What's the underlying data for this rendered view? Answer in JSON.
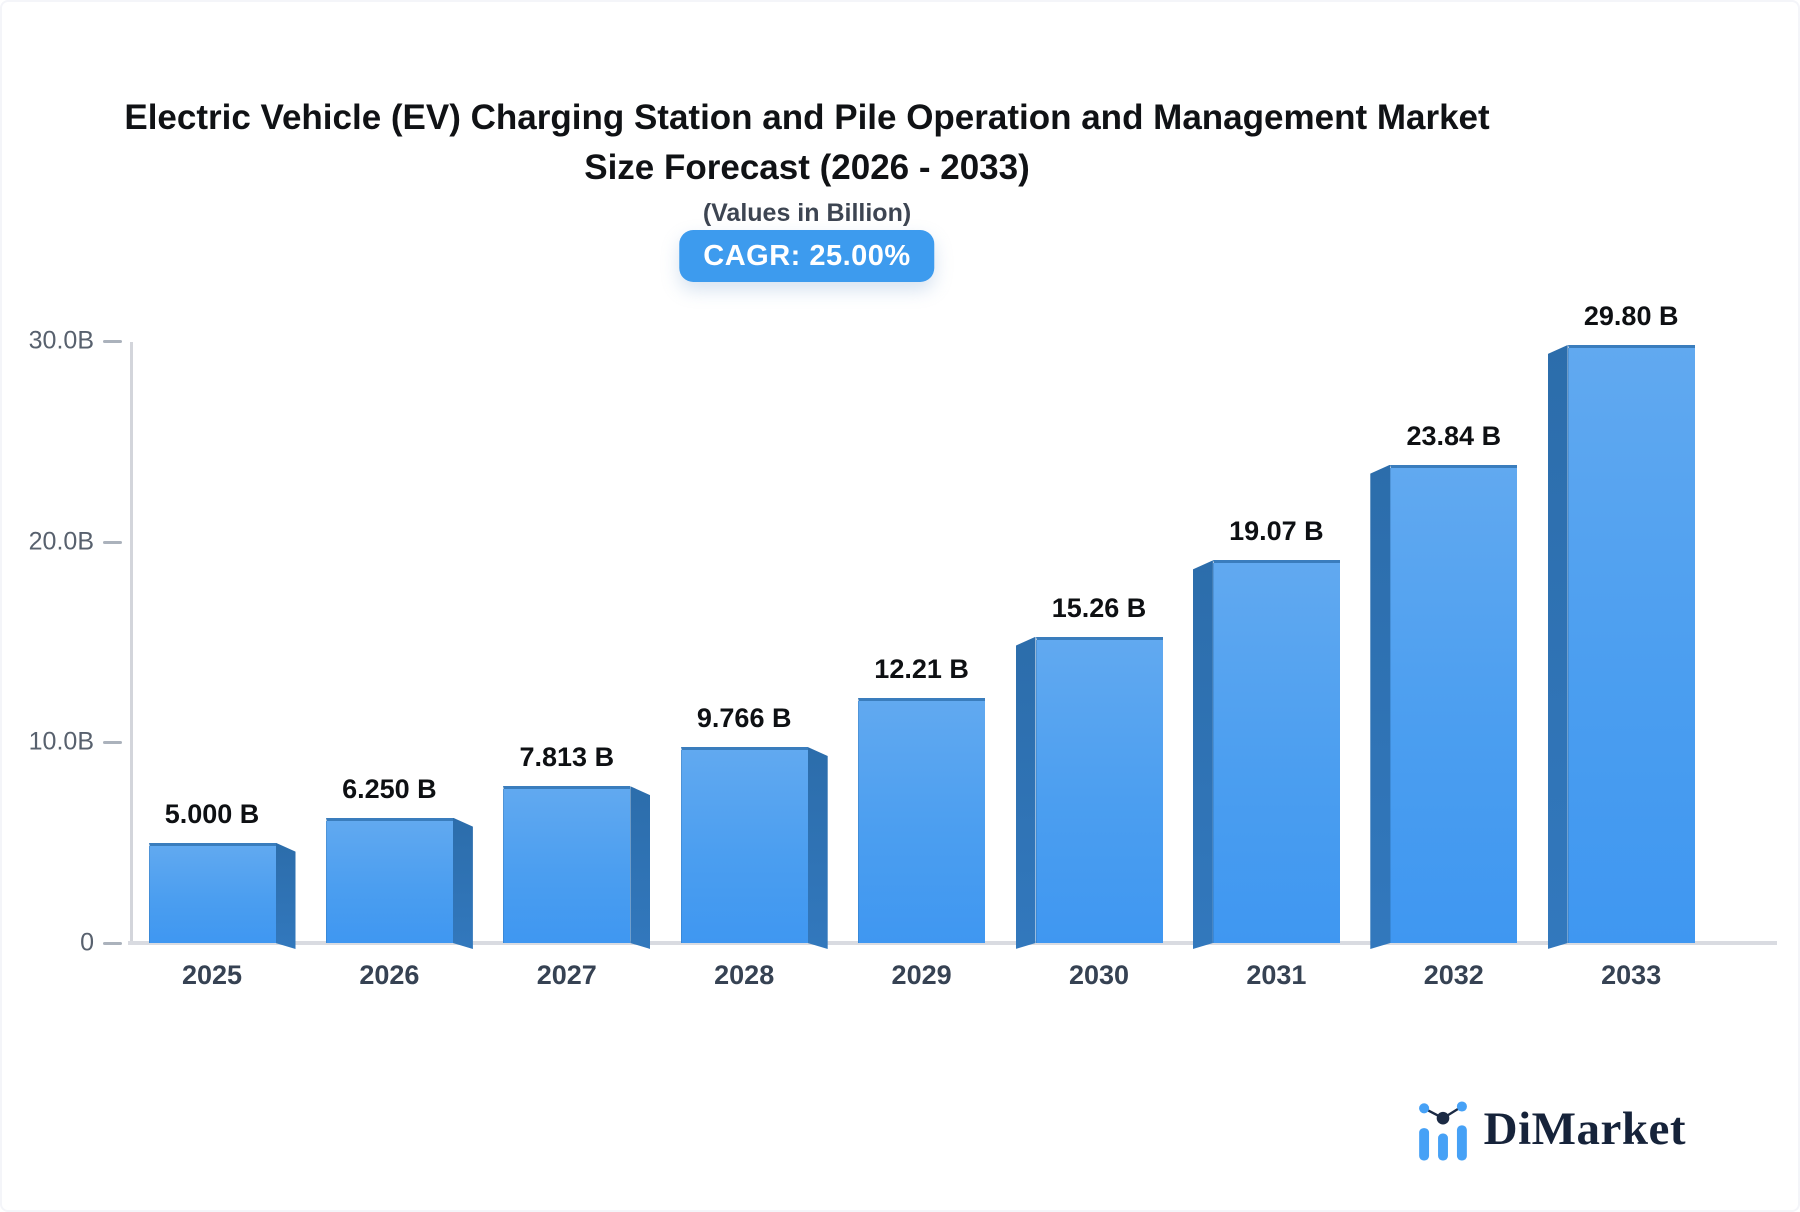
{
  "header": {
    "title_line1": "Electric Vehicle (EV) Charging Station and Pile Operation and Management Market",
    "title_line2": "Size Forecast (2026 - 2033)",
    "subtitle": "(Values in Billion)",
    "cagr_label": "CAGR: 25.00%"
  },
  "chart_data": {
    "type": "bar",
    "title": "Electric Vehicle (EV) Charging Station and Pile Operation and Management Market Size Forecast (2026 - 2033)",
    "subtitle": "(Values in Billion)",
    "cagr_percent": 25.0,
    "categories": [
      "2025",
      "2026",
      "2027",
      "2028",
      "2029",
      "2030",
      "2031",
      "2032",
      "2033"
    ],
    "values": [
      5.0,
      6.25,
      7.813,
      9.766,
      12.21,
      15.26,
      19.07,
      23.84,
      29.8
    ],
    "value_labels": [
      "5.000 B",
      "6.250 B",
      "7.813 B",
      "9.766 B",
      "12.21 B",
      "15.26 B",
      "19.07 B",
      "23.84 B",
      "29.80 B"
    ],
    "xlabel": "",
    "ylabel": "",
    "ylim": [
      0,
      30
    ],
    "yticks": [
      {
        "label": "30.0B",
        "value": 30
      },
      {
        "label": "20.0B",
        "value": 20
      },
      {
        "label": "10.0B",
        "value": 10
      },
      {
        "label": "0",
        "value": 0
      }
    ],
    "grid": false,
    "legend": "none",
    "colors": {
      "bar_face_top": "#61a9f0",
      "bar_face_bottom": "#3f97f1",
      "bar_side": "#2d6fae",
      "badge_background": "#3d9bee",
      "badge_text": "#ffffff",
      "axis_line": "#d3d5db",
      "tick_text": "#58616e",
      "year_text": "#364253",
      "value_text": "#0e1013"
    }
  },
  "footer": {
    "brand": "DiMarket"
  }
}
